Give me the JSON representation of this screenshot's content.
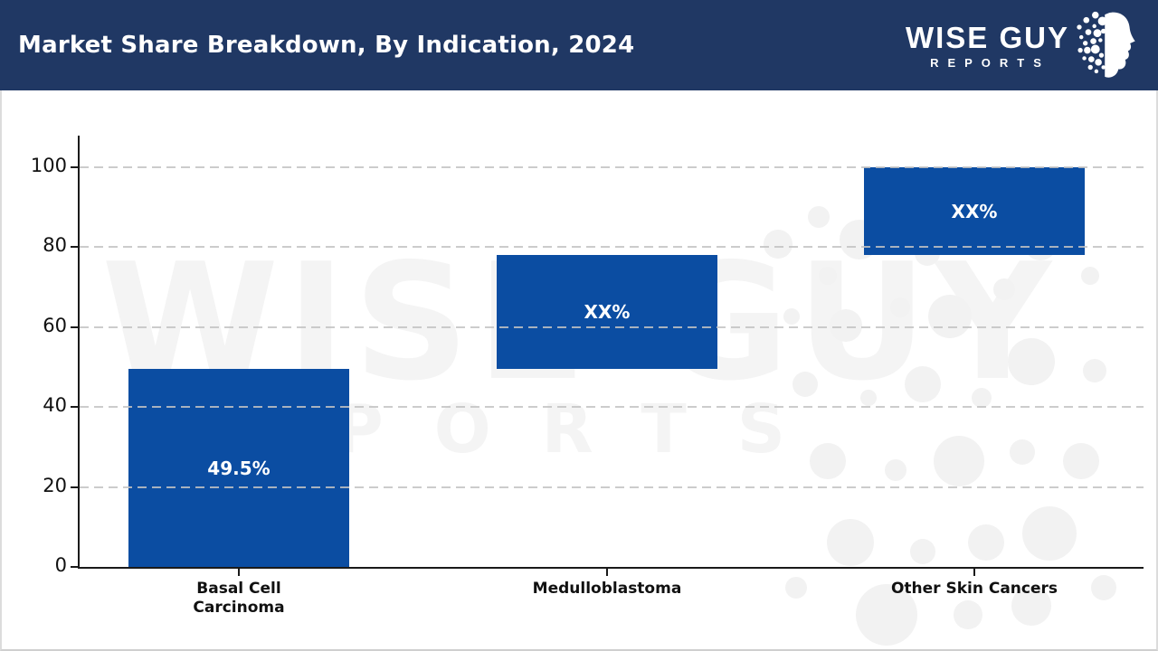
{
  "header": {
    "title": "Market Share Breakdown, By Indication, 2024",
    "logo": {
      "line1": "WISE GUY",
      "line2": "REPORTS"
    },
    "bg_color": "#203864"
  },
  "watermark": {
    "line1": "WISE GUY",
    "line2": "REPORTS"
  },
  "chart_data": {
    "type": "bar",
    "subtype": "waterfall",
    "title": "Market Share Breakdown, By Indication, 2024",
    "categories": [
      "Basal Cell Carcinoma",
      "Medulloblastoma",
      "Other Skin Cancers"
    ],
    "bars": [
      {
        "category": "Basal Cell Carcinoma",
        "start": 0,
        "end": 49.5,
        "label": "49.5%"
      },
      {
        "category": "Medulloblastoma",
        "start": 49.5,
        "end": 78,
        "label": "XX%"
      },
      {
        "category": "Other Skin Cancers",
        "start": 78,
        "end": 100,
        "label": "XX%"
      }
    ],
    "xlabel": "",
    "ylabel": "",
    "ylim": [
      0,
      100
    ],
    "y_ticks": [
      0,
      20,
      40,
      60,
      80,
      100
    ],
    "grid": "horizontal-dashed",
    "legend": "none",
    "bar_color": "#0b4da2",
    "bar_label_color": "#ffffff",
    "axis_color": "#1a1a1a"
  }
}
